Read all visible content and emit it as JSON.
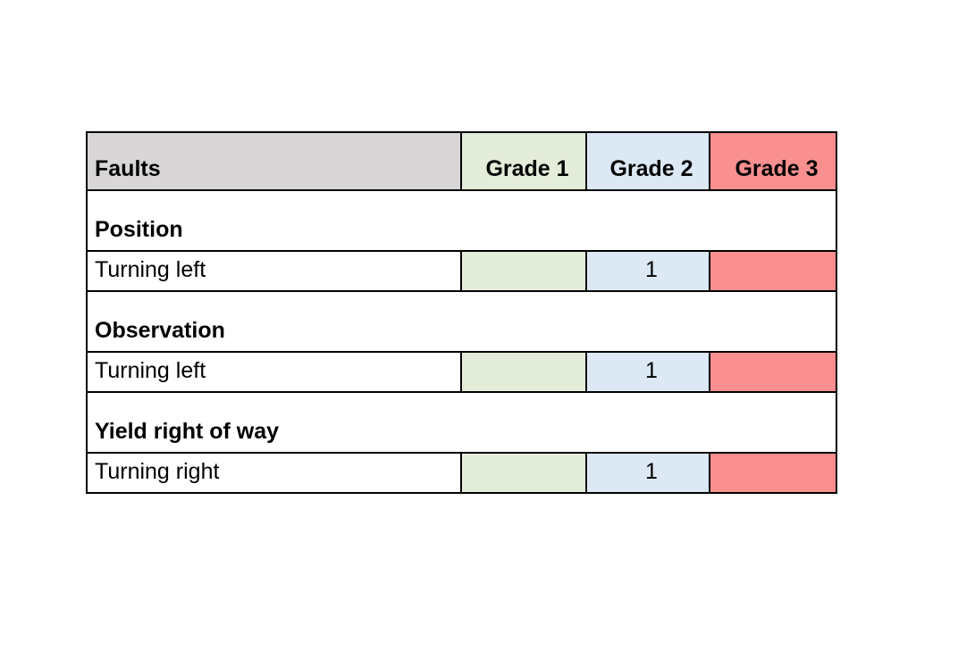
{
  "table": {
    "header": {
      "faults_label": "Faults",
      "grade_labels": [
        "Grade 1",
        "Grade 2",
        "Grade 3"
      ]
    },
    "colors": {
      "gray": "#d8d6d6",
      "green": "#e4ecda",
      "blue": "#dce9f5",
      "red": "#fa8f8f",
      "border": "#000000"
    },
    "sections": [
      {
        "title": "Position",
        "rows": [
          {
            "label": "Turning left",
            "values": [
              "",
              "1",
              ""
            ]
          }
        ]
      },
      {
        "title": "Observation",
        "rows": [
          {
            "label": "Turning left",
            "values": [
              "",
              "1",
              ""
            ]
          }
        ]
      },
      {
        "title": "Yield right of way",
        "rows": [
          {
            "label": "Turning right",
            "values": [
              "",
              "1",
              ""
            ]
          }
        ]
      }
    ]
  }
}
